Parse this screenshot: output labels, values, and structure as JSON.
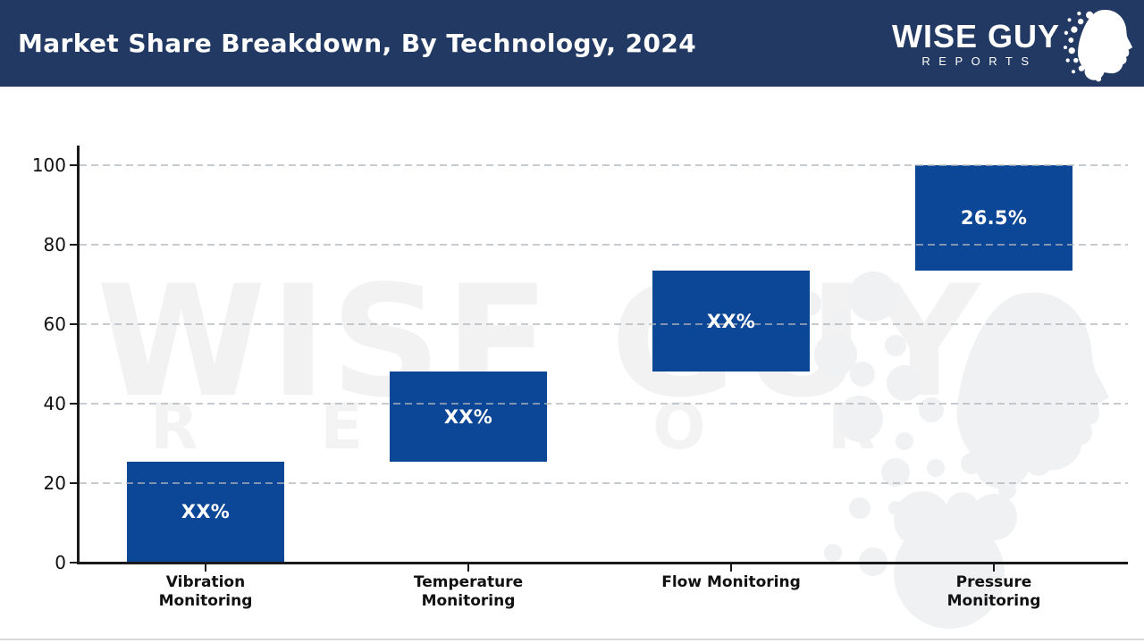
{
  "header": {
    "title": "Market Share Breakdown, By Technology, 2024",
    "bg_color": "#223a63",
    "logo": {
      "wordmark": "WISE GUY",
      "subtitle": "REPORTS"
    }
  },
  "watermark": {
    "wordmark": "WISE GUY",
    "subtitle": "R E P O R T S"
  },
  "chart_data": {
    "type": "bar",
    "subtype": "waterfall",
    "title": "Market Share Breakdown, By Technology, 2024",
    "categories": [
      "Vibration Monitoring",
      "Temperature Monitoring",
      "Flow Monitoring",
      "Pressure Monitoring"
    ],
    "category_lines": [
      [
        "Vibration",
        "Monitoring"
      ],
      [
        "Temperature",
        "Monitoring"
      ],
      [
        "Flow Monitoring"
      ],
      [
        "Pressure",
        "Monitoring"
      ]
    ],
    "bars": [
      {
        "category": "Vibration Monitoring",
        "start": 0,
        "end": 25.4,
        "label": "XX%"
      },
      {
        "category": "Temperature Monitoring",
        "start": 25.4,
        "end": 48,
        "label": "XX%"
      },
      {
        "category": "Flow Monitoring",
        "start": 48,
        "end": 73.5,
        "label": "XX%"
      },
      {
        "category": "Pressure Monitoring",
        "start": 73.5,
        "end": 100,
        "label": "26.5%"
      }
    ],
    "xlabel": "",
    "ylabel": "",
    "yticks": [
      0,
      20,
      40,
      60,
      80,
      100
    ],
    "ylim": [
      0,
      105
    ],
    "grid": {
      "horizontal": true,
      "style": "dashed",
      "color": "#cfcfcf"
    },
    "legend": "none",
    "bar_color": "#0b4697",
    "bar_label_color": "#ffffff",
    "axis_color": "#1a1a1a"
  }
}
